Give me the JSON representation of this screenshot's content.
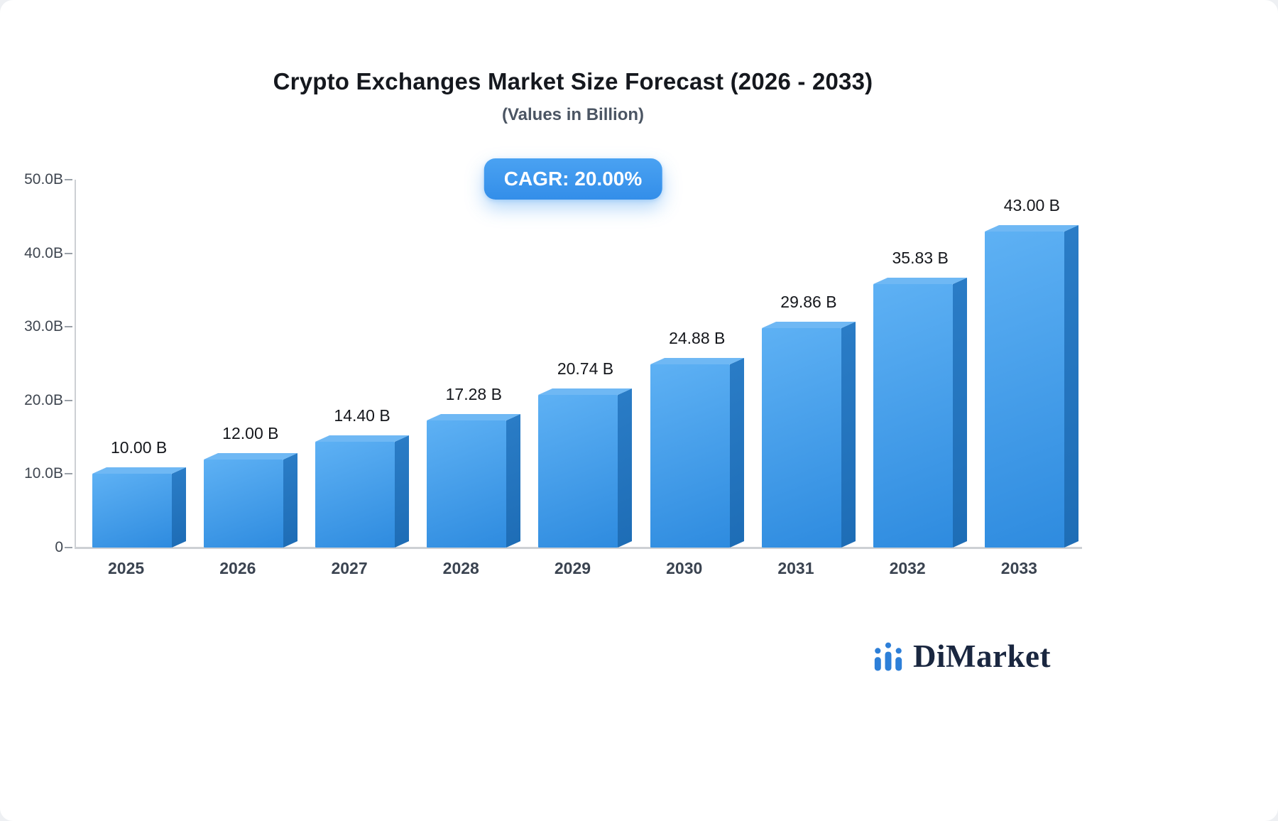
{
  "header": {
    "title": "Crypto Exchanges Market Size Forecast (2026 - 2033)",
    "subtitle": "(Values in Billion)",
    "cagr_badge": "CAGR: 20.00%"
  },
  "chart_data": {
    "type": "bar",
    "title": "Crypto Exchanges Market Size Forecast (2026 - 2033)",
    "subtitle": "(Values in Billion)",
    "annotation": "CAGR: 20.00%",
    "cagr_percent": 20.0,
    "unit": "Billion USD",
    "categories": [
      "2025",
      "2026",
      "2027",
      "2028",
      "2029",
      "2030",
      "2031",
      "2032",
      "2033"
    ],
    "values": [
      10.0,
      12.0,
      14.4,
      17.28,
      20.74,
      24.88,
      29.86,
      35.83,
      43.0
    ],
    "value_labels": [
      "10.00 B",
      "12.00 B",
      "14.40 B",
      "17.28 B",
      "20.74 B",
      "24.88 B",
      "29.86 B",
      "35.83 B",
      "43.00 B"
    ],
    "xlabel": "",
    "ylabel": "",
    "ylim": [
      0,
      50
    ],
    "y_ticks": [
      {
        "value": 0,
        "label": "0"
      },
      {
        "value": 10,
        "label": "10.0B"
      },
      {
        "value": 20,
        "label": "20.0B"
      },
      {
        "value": 30,
        "label": "30.0B"
      },
      {
        "value": 40,
        "label": "40.0B"
      },
      {
        "value": 50,
        "label": "50.0B"
      }
    ],
    "grid": false,
    "legend": false,
    "colors": {
      "bar_front_top": "#5eb1f4",
      "bar_front_bottom": "#2e8bdf",
      "bar_side_top": "#2a7cc6",
      "bar_side_bottom": "#1e6db6",
      "bar_top_face": "#6fb8f4",
      "badge_bg_top": "#4aa2f2",
      "badge_bg_bottom": "#338ee9",
      "axis": "#cdd0d4"
    }
  },
  "logo": {
    "brand": "DiMarket",
    "icon": "bar-chart-logo-icon"
  }
}
